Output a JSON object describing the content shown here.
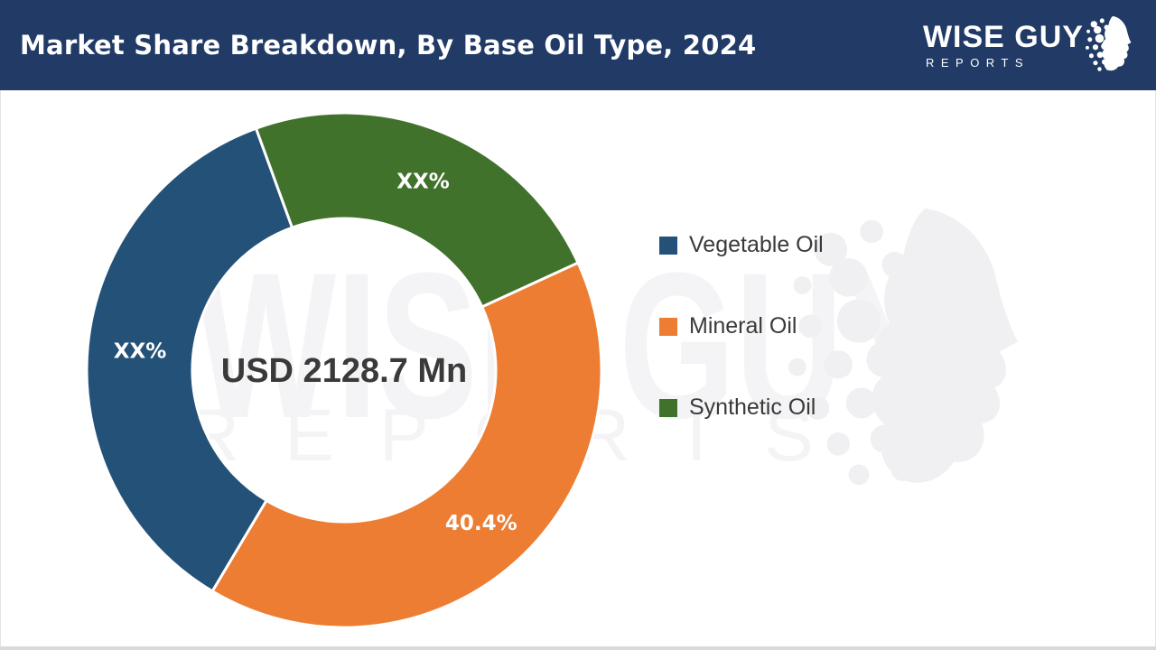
{
  "header": {
    "title": "Market Share Breakdown, By Base Oil Type, 2024",
    "logo": {
      "brand": "WISE GUY",
      "sub": "REPORTS",
      "head_icon": "dotted-head-profile-icon"
    }
  },
  "chart_data": {
    "type": "pie",
    "subtype": "donut",
    "title": "Market Share Breakdown, By Base Oil Type, 2024",
    "center_label": "USD 2128.7 Mn",
    "hole_ratio": 0.59,
    "start_angle_deg": 110,
    "direction": "counterclockwise",
    "legend_position": "right",
    "grid": false,
    "segments": [
      {
        "name": "Vegetable Oil",
        "value_pct": 35.9,
        "label": "XX%",
        "color": "#235178"
      },
      {
        "name": "Mineral Oil",
        "value_pct": 40.4,
        "label": "40.4%",
        "color": "#ed7d33"
      },
      {
        "name": "Synthetic Oil",
        "value_pct": 23.7,
        "label": "XX%",
        "color": "#40722c"
      }
    ]
  },
  "watermark": {
    "line1": "WISE GUY",
    "line2": "REPORTS"
  },
  "theme": {
    "header_bg": "#213a66",
    "header_text": "#ffffff",
    "content_bg": "#ffffff",
    "center_text_color": "#3a3a3a",
    "legend_text_color": "#3a3a3a",
    "slice_label_color": "#ffffff",
    "slice_gap_color": "#ffffff",
    "watermark_color": "#f4f4f6",
    "watermark_head_color": "#f0f0f2",
    "bottom_strip_color": "#d9d9d9"
  }
}
